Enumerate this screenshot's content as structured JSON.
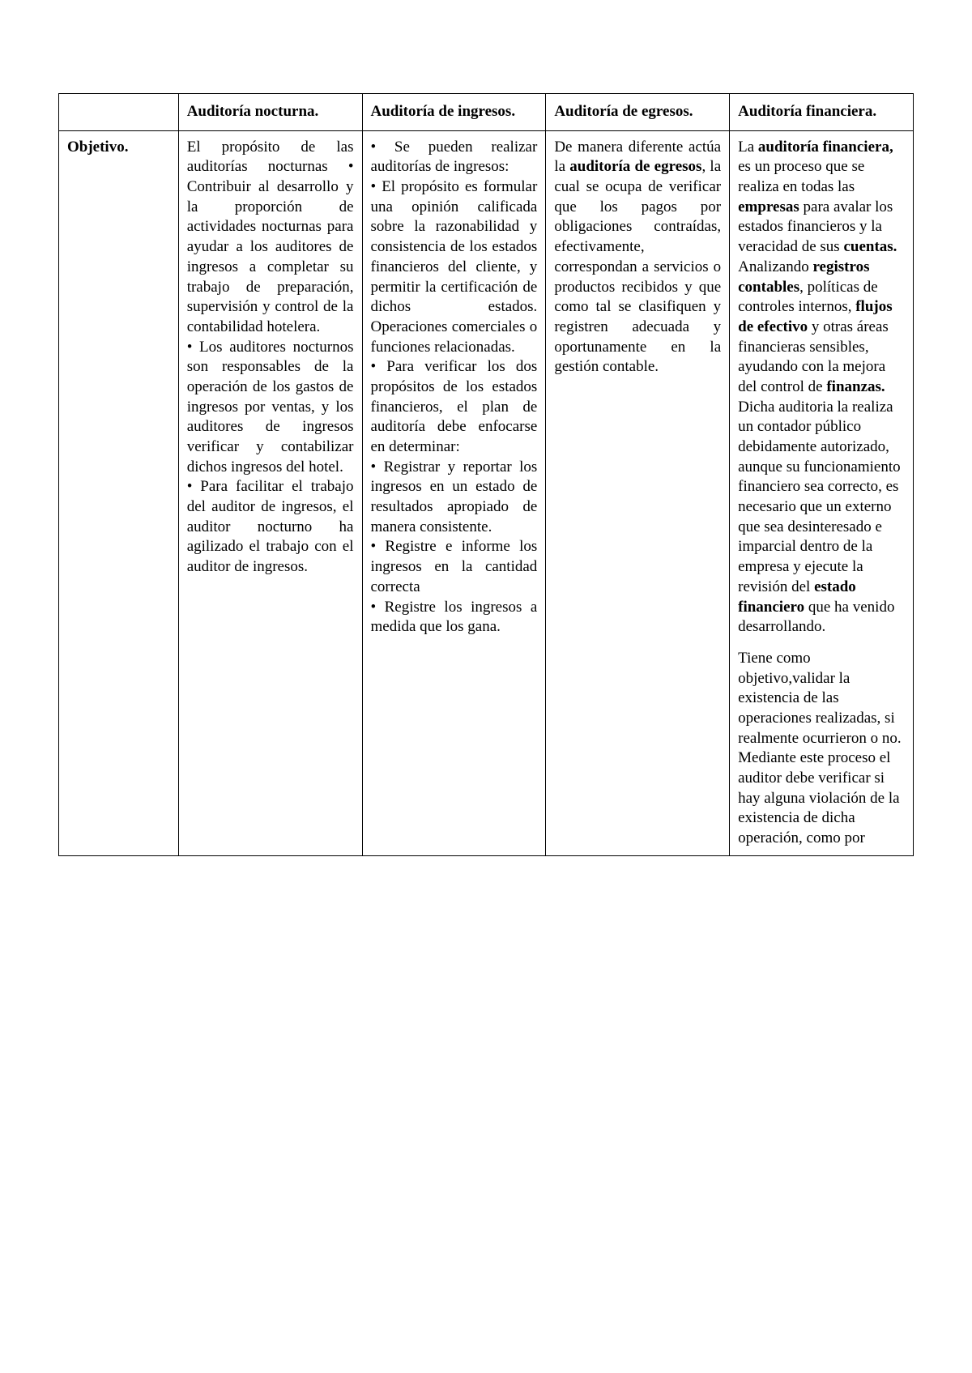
{
  "table": {
    "border_color": "#000000",
    "background_color": "#ffffff",
    "text_color": "#000000",
    "font_family": "Times New Roman",
    "font_size_pt": 14,
    "columns": [
      {
        "key": "label",
        "header": "",
        "width_pct": 14
      },
      {
        "key": "nocturna",
        "header": "Auditoría nocturna.",
        "width_pct": 21.5
      },
      {
        "key": "ingresos",
        "header": "Auditoría de ingresos.",
        "width_pct": 21.5
      },
      {
        "key": "egresos",
        "header": "Auditoría de egresos.",
        "width_pct": 21.5
      },
      {
        "key": "financiera",
        "header": "Auditoría financiera.",
        "width_pct": 21.5
      }
    ],
    "row": {
      "label": "Objetivo.",
      "nocturna": {
        "align": "justify",
        "segments": [
          {
            "text": "El propósito de las auditorías nocturnas • Contribuir al desarrollo y la proporción de actividades nocturnas para ayudar a los auditores de ingresos a completar su trabajo de preparación, supervisión y control de la contabilidad hotelera."
          },
          {
            "text": "• Los auditores nocturnos son responsables de la operación de los gastos de ingresos por ventas, y los auditores de ingresos verificar y contabilizar dichos ingresos del hotel."
          },
          {
            "text": "• Para facilitar el trabajo del auditor de ingresos, el auditor nocturno ha agilizado el trabajo con el auditor de ingresos."
          }
        ]
      },
      "ingresos": {
        "align": "justify",
        "segments": [
          {
            "text": "• Se pueden realizar auditorías de ingresos:"
          },
          {
            "text": "• El propósito es formular una opinión calificada sobre la razonabilidad y consistencia de los estados financieros del cliente, y permitir la certificación de dichos estados. Operaciones comerciales o funciones relacionadas."
          },
          {
            "text": "• Para verificar los dos propósitos de los estados financieros, el plan de auditoría debe enfocarse en determinar:"
          },
          {
            "text": "• Registrar y reportar los ingresos en un estado de resultados apropiado de manera consistente."
          },
          {
            "text": "• Registre e informe los ingresos en la cantidad correcta"
          },
          {
            "text": "• Registre los ingresos a medida que los gana."
          }
        ]
      },
      "egresos": {
        "align": "justify",
        "runs": [
          {
            "text": "De manera diferente actúa la "
          },
          {
            "text": "auditoría de egresos",
            "bold": true
          },
          {
            "text": ", la cual se ocupa de verificar que los pagos por obligaciones contraídas, efectivamente, correspondan a servicios o productos recibidos y que como tal se clasifiquen y registren adecuada y oportunamente en la gestión contable."
          }
        ]
      },
      "financiera": {
        "align": "left",
        "paragraphs": [
          {
            "runs": [
              {
                "text": "La "
              },
              {
                "text": "auditoría financiera,",
                "bold": true
              },
              {
                "text": " es un proceso que se realiza en todas las "
              },
              {
                "text": "empresas",
                "bold": true
              },
              {
                "text": " para avalar los estados financieros y la veracidad de sus "
              },
              {
                "text": "cuentas.",
                "bold": true
              },
              {
                "text": " Analizando "
              },
              {
                "text": "registros contables",
                "bold": true
              },
              {
                "text": ", políticas de controles internos, "
              },
              {
                "text": "flujos de efectivo",
                "bold": true
              },
              {
                "text": " y otras áreas financieras sensibles, ayudando con la mejora del control de "
              },
              {
                "text": "finanzas.",
                "bold": true
              },
              {
                "text": " Dicha auditoria la realiza un contador público debidamente autorizado, aunque su funcionamiento financiero sea correcto, es necesario que un externo que sea desinteresado e imparcial dentro de la empresa y ejecute la revisión del "
              },
              {
                "text": "estado financiero",
                "bold": true
              },
              {
                "text": " que ha venido desarrollando."
              }
            ]
          },
          {
            "runs": [
              {
                "text": "Tiene como objetivo,validar la existencia de las operaciones realizadas, si realmente ocurrieron o no. Mediante este proceso el auditor debe verificar si hay alguna violación de la existencia de dicha operación, como por"
              }
            ]
          }
        ]
      }
    }
  }
}
